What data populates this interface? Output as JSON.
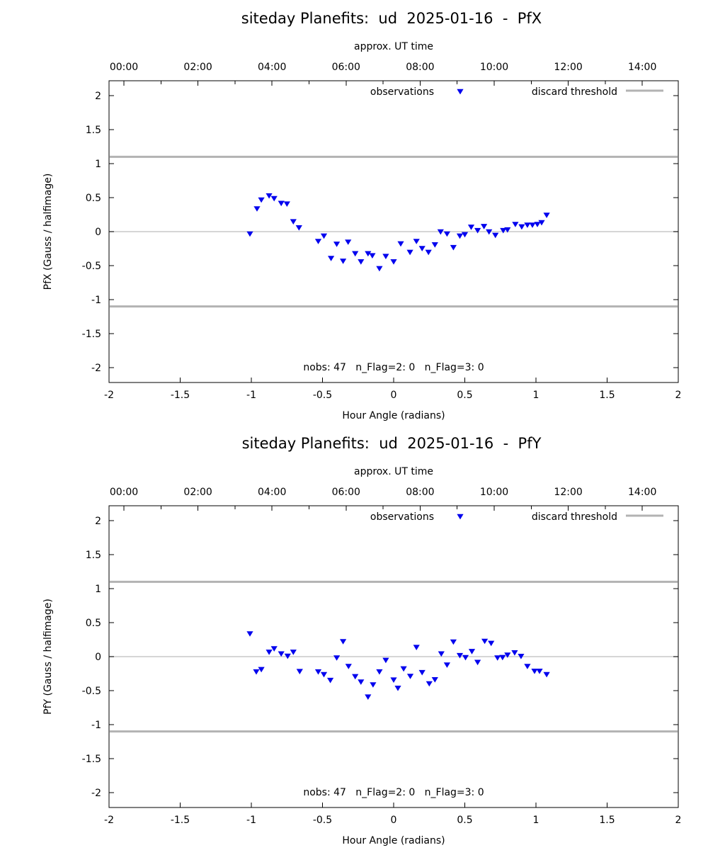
{
  "colors": {
    "background": "#ffffff",
    "marker_blue": "#0000ee",
    "threshold_gray": "#b3b3b3",
    "zero_line_gray": "#c8c8c8",
    "axis_black": "#000000"
  },
  "chart_data": [
    {
      "type": "scatter",
      "title": "siteday Planefits:  ud  2025-01-16  -  PfX",
      "x2_axis": {
        "label": "approx. UT time",
        "tick_labels": [
          "00:00",
          "02:00",
          "04:00",
          "06:00",
          "08:00",
          "10:00",
          "12:00",
          "14:00"
        ]
      },
      "x_axis": {
        "label": "Hour Angle (radians)",
        "tick_labels": [
          "-2",
          "-1.5",
          "-1",
          "-0.5",
          "0",
          "0.5",
          "1",
          "1.5",
          "2"
        ],
        "range": [
          -2,
          2
        ]
      },
      "y_axis": {
        "label": "PfX (Gauss / halfimage)",
        "tick_labels": [
          "2",
          "1.5",
          "1",
          "0.5",
          "0",
          "-0.5",
          "-1",
          "-1.5",
          "-2"
        ],
        "range": [
          -2.2,
          2.2
        ]
      },
      "legend": [
        {
          "label": "observations",
          "sample": "triangle-marker",
          "color": "#0000ee"
        },
        {
          "label": "discard threshold",
          "sample": "line",
          "color": "#b3b3b3"
        }
      ],
      "legend_position": "top-right-inside",
      "grid": false,
      "zero_line": 0,
      "discard_threshold": [
        1.1,
        -1.1
      ],
      "annotation": "nobs: 47   n_Flag=2: 0   n_Flag=3: 0",
      "series": [
        {
          "name": "observations",
          "marker": "filled-triangle-down",
          "color": "#0000ee",
          "points": [
            [
              -1.01,
              -0.03
            ],
            [
              -0.96,
              0.34
            ],
            [
              -0.93,
              0.47
            ],
            [
              -0.875,
              0.53
            ],
            [
              -0.84,
              0.49
            ],
            [
              -0.79,
              0.42
            ],
            [
              -0.75,
              0.41
            ],
            [
              -0.705,
              0.15
            ],
            [
              -0.665,
              0.06
            ],
            [
              -0.53,
              -0.14
            ],
            [
              -0.49,
              -0.06
            ],
            [
              -0.44,
              -0.39
            ],
            [
              -0.4,
              -0.18
            ],
            [
              -0.355,
              -0.43
            ],
            [
              -0.32,
              -0.15
            ],
            [
              -0.27,
              -0.32
            ],
            [
              -0.23,
              -0.44
            ],
            [
              -0.18,
              -0.32
            ],
            [
              -0.15,
              -0.35
            ],
            [
              -0.1,
              -0.54
            ],
            [
              -0.055,
              -0.36
            ],
            [
              0.0,
              -0.44
            ],
            [
              0.05,
              -0.175
            ],
            [
              0.115,
              -0.3
            ],
            [
              0.16,
              -0.14
            ],
            [
              0.2,
              -0.245
            ],
            [
              0.245,
              -0.3
            ],
            [
              0.29,
              -0.19
            ],
            [
              0.33,
              0.0
            ],
            [
              0.375,
              -0.03
            ],
            [
              0.42,
              -0.23
            ],
            [
              0.465,
              -0.06
            ],
            [
              0.5,
              -0.04
            ],
            [
              0.545,
              0.07
            ],
            [
              0.59,
              0.02
            ],
            [
              0.635,
              0.08
            ],
            [
              0.67,
              0.0
            ],
            [
              0.715,
              -0.05
            ],
            [
              0.77,
              0.02
            ],
            [
              0.8,
              0.03
            ],
            [
              0.855,
              0.11
            ],
            [
              0.9,
              0.075
            ],
            [
              0.94,
              0.1
            ],
            [
              0.975,
              0.1
            ],
            [
              1.01,
              0.11
            ],
            [
              1.04,
              0.135
            ],
            [
              1.075,
              0.245
            ]
          ]
        }
      ]
    },
    {
      "type": "scatter",
      "title": "siteday Planefits:  ud  2025-01-16  -  PfY",
      "x2_axis": {
        "label": "approx. UT time",
        "tick_labels": [
          "00:00",
          "02:00",
          "04:00",
          "06:00",
          "08:00",
          "10:00",
          "12:00",
          "14:00"
        ]
      },
      "x_axis": {
        "label": "Hour Angle (radians)",
        "tick_labels": [
          "-2",
          "-1.5",
          "-1",
          "-0.5",
          "0",
          "0.5",
          "1",
          "1.5",
          "2"
        ],
        "range": [
          -2,
          2
        ]
      },
      "y_axis": {
        "label": "PfY (Gauss / halfimage)",
        "tick_labels": [
          "2",
          "1.5",
          "1",
          "0.5",
          "0",
          "-0.5",
          "-1",
          "-1.5",
          "-2"
        ],
        "range": [
          -2.2,
          2.2
        ]
      },
      "legend": [
        {
          "label": "observations",
          "sample": "triangle-marker",
          "color": "#0000ee"
        },
        {
          "label": "discard threshold",
          "sample": "line",
          "color": "#b3b3b3"
        }
      ],
      "legend_position": "top-right-inside",
      "grid": false,
      "zero_line": 0,
      "discard_threshold": [
        1.1,
        -1.1
      ],
      "annotation": "nobs: 47   n_Flag=2: 0   n_Flag=3: 0",
      "series": [
        {
          "name": "observations",
          "marker": "filled-triangle-down",
          "color": "#0000ee",
          "points": [
            [
              -1.01,
              0.34
            ],
            [
              -0.965,
              -0.22
            ],
            [
              -0.93,
              -0.185
            ],
            [
              -0.875,
              0.07
            ],
            [
              -0.84,
              0.12
            ],
            [
              -0.79,
              0.045
            ],
            [
              -0.745,
              0.01
            ],
            [
              -0.705,
              0.07
            ],
            [
              -0.66,
              -0.215
            ],
            [
              -0.53,
              -0.22
            ],
            [
              -0.49,
              -0.26
            ],
            [
              -0.445,
              -0.345
            ],
            [
              -0.4,
              -0.015
            ],
            [
              -0.355,
              0.225
            ],
            [
              -0.317,
              -0.14
            ],
            [
              -0.27,
              -0.29
            ],
            [
              -0.23,
              -0.37
            ],
            [
              -0.18,
              -0.59
            ],
            [
              -0.145,
              -0.41
            ],
            [
              -0.1,
              -0.22
            ],
            [
              -0.055,
              -0.05
            ],
            [
              0.0,
              -0.34
            ],
            [
              0.03,
              -0.46
            ],
            [
              0.07,
              -0.175
            ],
            [
              0.117,
              -0.285
            ],
            [
              0.16,
              0.14
            ],
            [
              0.2,
              -0.23
            ],
            [
              0.25,
              -0.395
            ],
            [
              0.29,
              -0.335
            ],
            [
              0.335,
              0.045
            ],
            [
              0.375,
              -0.12
            ],
            [
              0.42,
              0.22
            ],
            [
              0.465,
              0.02
            ],
            [
              0.505,
              -0.01
            ],
            [
              0.55,
              0.08
            ],
            [
              0.59,
              -0.08
            ],
            [
              0.64,
              0.23
            ],
            [
              0.685,
              0.2
            ],
            [
              0.73,
              -0.015
            ],
            [
              0.765,
              -0.008
            ],
            [
              0.8,
              0.027
            ],
            [
              0.85,
              0.06
            ],
            [
              0.895,
              0.008
            ],
            [
              0.94,
              -0.14
            ],
            [
              0.99,
              -0.21
            ],
            [
              1.025,
              -0.21
            ],
            [
              1.075,
              -0.26
            ]
          ]
        }
      ]
    }
  ]
}
